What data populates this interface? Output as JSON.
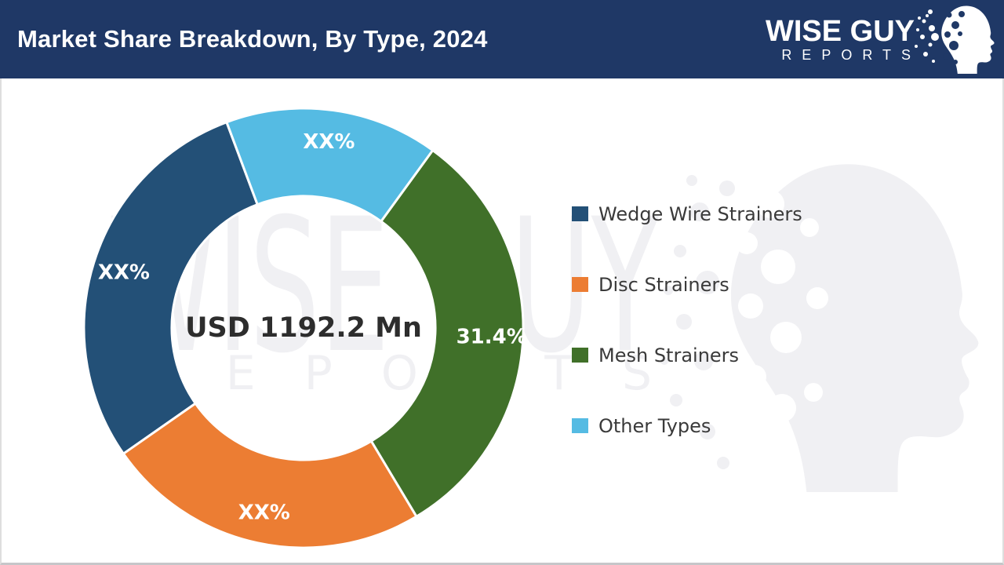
{
  "header": {
    "title": "Market Share Breakdown, By Type, 2024",
    "logo": {
      "line1": "WISE GUY",
      "line2": "REPORTS"
    }
  },
  "watermark": {
    "line1": "WISE GUY",
    "line2": "REPORTS"
  },
  "theme": {
    "header_bg": "#1f3866",
    "slice_separator": "#ffffff",
    "center_text_color": "#2d2d2d",
    "legend_text_color": "#3a3a3a",
    "watermark_color": "#f0f0f3",
    "border_color": "#c6c6c9"
  },
  "chart_data": {
    "type": "pie",
    "subtype": "donut",
    "title": "Market Share Breakdown, By Type, 2024",
    "center_label": "USD 1192.2 Mn",
    "start_angle_deg": 110.5,
    "counterclockwise": true,
    "inner_radius_ratio": 0.6,
    "label_radius_ratio": 0.857,
    "legend_position": "right",
    "segments": [
      {
        "id": "wedge-wire-strainers",
        "name": "Wedge Wire Strainers",
        "label": "XX%",
        "pct_estimated": 29.0,
        "color": "#235077"
      },
      {
        "id": "disc-strainers",
        "name": "Disc Strainers",
        "label": "XX%",
        "pct_estimated": 23.9,
        "color": "#ec7d33"
      },
      {
        "id": "mesh-strainers",
        "name": "Mesh Strainers",
        "label": "31.4%",
        "pct_estimated": 31.4,
        "color": "#407029"
      },
      {
        "id": "other-types",
        "name": "Other Types",
        "label": "XX%",
        "pct_estimated": 15.7,
        "color": "#55bbe3"
      }
    ]
  }
}
